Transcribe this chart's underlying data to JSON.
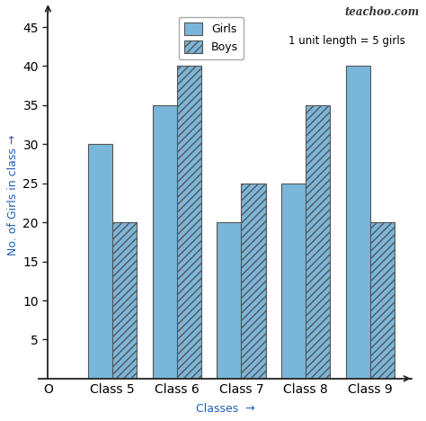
{
  "categories": [
    "Class 5",
    "Class 6",
    "Class 7",
    "Class 8",
    "Class 9"
  ],
  "girls_values": [
    30,
    35,
    20,
    25,
    40
  ],
  "boys_values": [
    20,
    40,
    25,
    35,
    20
  ],
  "bar_color": "#7ab6d9",
  "bar_hatch_girls": "",
  "bar_hatch_boys": "////",
  "bar_edgecolor": "#555555",
  "bar_hatch_color": "#555555",
  "ylabel": "No. of Girls in class",
  "xlabel": "Classes",
  "ylabel_color": "#2060b0",
  "xlabel_color": "#2060b0",
  "ylim": [
    0,
    47
  ],
  "yticks": [
    5,
    10,
    15,
    20,
    25,
    30,
    35,
    40,
    45
  ],
  "origin_label": "O",
  "legend_girls": "Girls",
  "legend_boys": "Boys",
  "annotation": "1 unit length = 5 girls",
  "watermark": "teachoo.com",
  "background_color": "#ffffff",
  "bar_width": 0.38,
  "axis_fontsize": 9,
  "tick_fontsize": 9
}
